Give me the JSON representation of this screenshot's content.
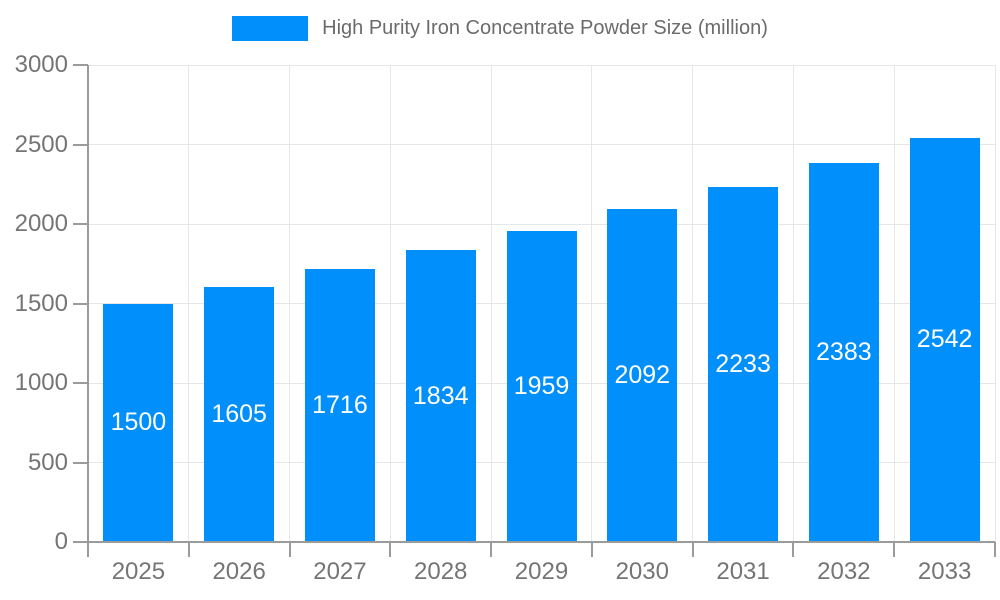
{
  "chart_data": {
    "type": "bar",
    "title": "High Purity Iron Concentrate Powder Size (million)",
    "legend": {
      "label": "High Purity Iron Concentrate Powder Size (million)",
      "position": "top"
    },
    "categories": [
      "2025",
      "2026",
      "2027",
      "2028",
      "2029",
      "2030",
      "2031",
      "2032",
      "2033"
    ],
    "series": [
      {
        "name": "High Purity Iron Concentrate Powder Size (million)",
        "values": [
          1500,
          1605,
          1716,
          1834,
          1959,
          2092,
          2233,
          2383,
          2542
        ]
      }
    ],
    "xlabel": "",
    "ylabel": "",
    "ylim": [
      0,
      3000
    ],
    "yticks": [
      0,
      500,
      1000,
      1500,
      2000,
      2500,
      3000
    ],
    "grid": true,
    "value_labels_inside_bars": true,
    "colors": {
      "bar": "#008FFB",
      "value_label": "#FFFFFF",
      "axis_text": "#757575",
      "legend_text": "#6B6B6B",
      "gridline": "#E7E7E7",
      "axis_line": "#9B9B9B"
    }
  }
}
